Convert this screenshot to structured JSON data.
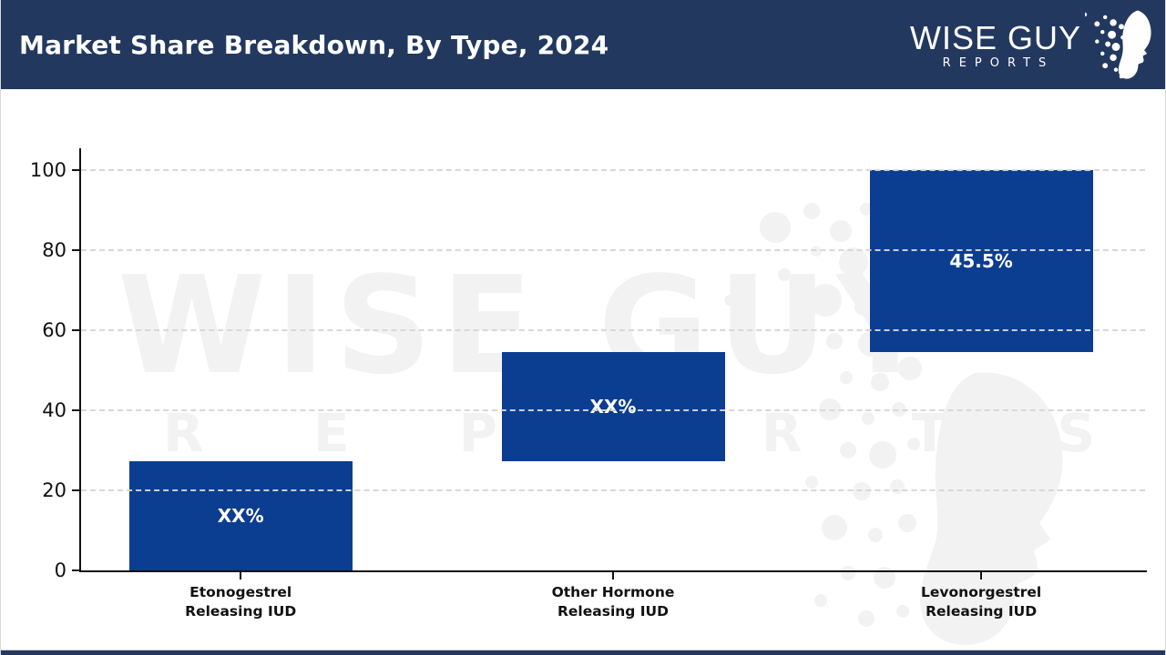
{
  "header": {
    "title": "Market Share Breakdown, By Type, 2024",
    "logo": {
      "line1": "WISE GUY",
      "line2": "REPORTS"
    }
  },
  "watermark": {
    "line1": "WISE GUY",
    "line2": "REPORTS"
  },
  "colors": {
    "header_bg": "#22385f",
    "bar": "#0b3d91",
    "bar_label": "#ffffff",
    "gridline": "#d6d6d6",
    "watermark": "#f2f2f2"
  },
  "chart_data": {
    "type": "bar",
    "variant": "waterfall",
    "title": "Market Share Breakdown, By Type, 2024",
    "categories": [
      "Etonogestrel Releasing IUD",
      "Other Hormone Releasing IUD",
      "Levonorgestrel Releasing IUD"
    ],
    "bars": [
      {
        "start": 0,
        "end": 27.3,
        "label": "XX%"
      },
      {
        "start": 27.3,
        "end": 54.5,
        "label": "XX%"
      },
      {
        "start": 54.5,
        "end": 100,
        "label": "45.5%"
      }
    ],
    "ylim": [
      0,
      100
    ],
    "yticks": [
      0,
      20,
      40,
      60,
      80,
      100
    ],
    "xlabel": "",
    "ylabel": "",
    "grid": "horizontal-dashed",
    "legend": "none",
    "bar_color": "#0b3d91",
    "bar_label_color": "#ffffff"
  }
}
